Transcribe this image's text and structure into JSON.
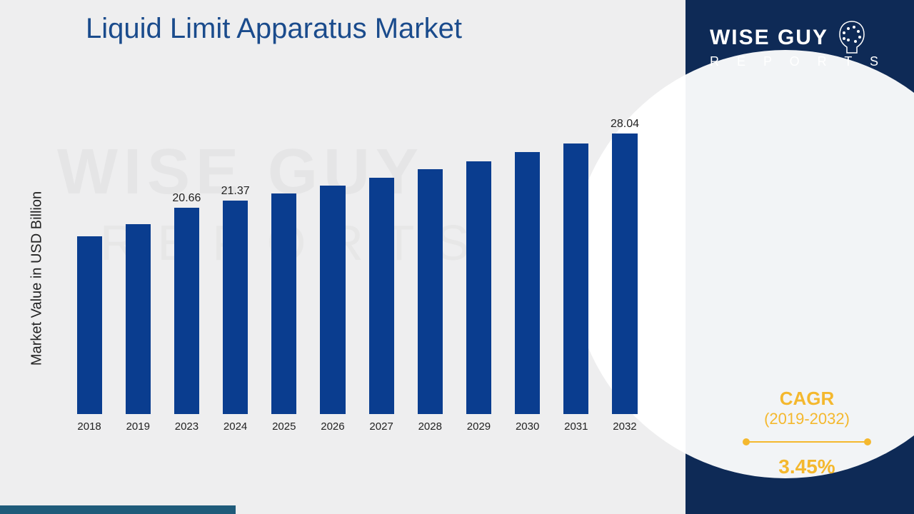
{
  "title": "Liquid Limit Apparatus Market",
  "brand": {
    "main": "WISE GUY",
    "sub": "R E P O R T S"
  },
  "cagr": {
    "title": "CAGR",
    "years": "(2019-2032)",
    "value": "3.45%",
    "color": "#f4b82e"
  },
  "chart": {
    "type": "bar",
    "y_axis_label": "Market Value in USD Billion",
    "categories": [
      "2018",
      "2019",
      "2023",
      "2024",
      "2025",
      "2026",
      "2027",
      "2028",
      "2029",
      "2030",
      "2031",
      "2032"
    ],
    "values": [
      17.8,
      19.0,
      20.66,
      21.37,
      22.1,
      22.86,
      23.65,
      24.47,
      25.31,
      26.18,
      27.09,
      28.04
    ],
    "show_value_label": [
      false,
      false,
      true,
      true,
      false,
      false,
      false,
      false,
      false,
      false,
      false,
      true
    ],
    "bar_color": "#0a3d8f",
    "background_color": "#eeeeef",
    "ylim_max": 30,
    "bar_width_ratio": 0.7,
    "label_fontsize": 15,
    "value_fontsize": 16,
    "title_fontsize": 40,
    "title_color": "#1a4b8c",
    "axis_label_fontsize": 20
  },
  "panel": {
    "bg_color": "#0e2a56",
    "circle_color": "#ffffff"
  },
  "watermark": {
    "line1": "WISE GUY",
    "line2": "REPORTS"
  },
  "bottom_strip_color": "#1f5b7a"
}
